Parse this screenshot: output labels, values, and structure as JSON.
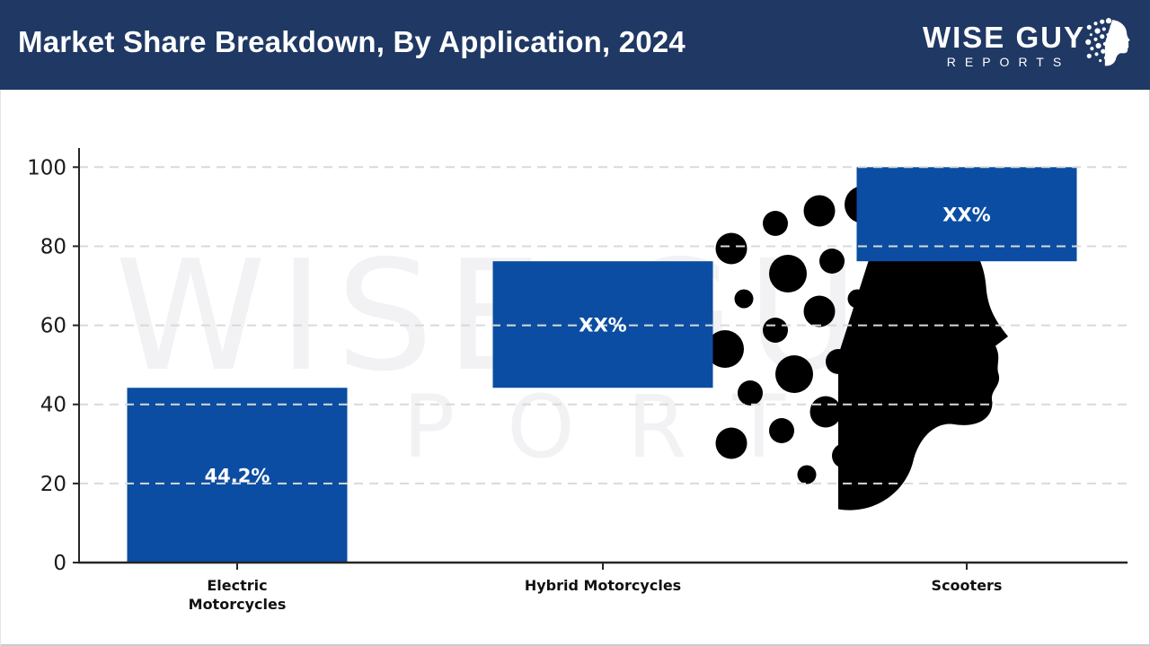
{
  "header": {
    "title": "Market Share Breakdown, By Application, 2024",
    "logo": {
      "line1": "WISE GUY",
      "line2": "REPORTS"
    }
  },
  "watermark": {
    "line1": "WISE GUY",
    "line2": "REPORTS"
  },
  "chart_data": {
    "type": "bar",
    "variant": "floating-segment-waterfall",
    "title": "Market Share Breakdown, By Application, 2024",
    "categories": [
      "Electric Motorcycles",
      "Hybrid Motorcycles",
      "Scooters"
    ],
    "category_label_lines": [
      [
        "Electric",
        "Motorcycles"
      ],
      [
        "Hybrid Motorcycles"
      ],
      [
        "Scooters"
      ]
    ],
    "segments": [
      {
        "category": "Electric Motorcycles",
        "start": 0,
        "end": 44.2,
        "label": "44.2%"
      },
      {
        "category": "Hybrid Motorcycles",
        "start": 44.2,
        "end": 76.2,
        "label": "XX%"
      },
      {
        "category": "Scooters",
        "start": 76.2,
        "end": 100,
        "label": "XX%"
      }
    ],
    "yticks": [
      0,
      20,
      40,
      60,
      80,
      100
    ],
    "ylim": [
      0,
      105
    ],
    "grid": "dashed-horizontal",
    "legend": "none",
    "xlabel": "",
    "ylabel": "",
    "colors": {
      "bar": "#0b4da2",
      "bar_label": "#ffffff",
      "gridline": "#d9d9d9",
      "axis": "#262626",
      "tick_label": "#1a1a1a",
      "header_bg": "#1f3864"
    }
  }
}
